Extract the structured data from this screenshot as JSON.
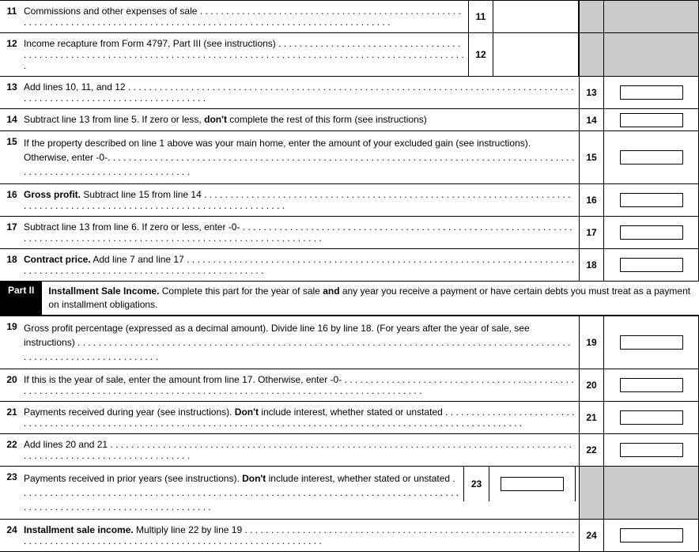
{
  "rows_a": [
    {
      "num": "11",
      "text": "Commissions and other expenses of sale",
      "mid_num": "11",
      "has_mid": true,
      "has_right_shade": true,
      "dots": true
    },
    {
      "num": "12",
      "text": "Income recapture from Form 4797, Part III (see instructions)",
      "mid_num": "12",
      "has_mid": true,
      "has_right_shade": true,
      "dots": true
    }
  ],
  "rows_b": [
    {
      "num": "13",
      "text": "Add lines 10, 11, and 12",
      "right_num": "13",
      "dots": true,
      "bold_prefix": ""
    },
    {
      "num": "14",
      "text": "Subtract line 13 from line 5. If zero or less, <b>don't</b> complete the rest of this form (see instructions)",
      "right_num": "14",
      "dots": false
    },
    {
      "num": "15",
      "text": "If the property described on line 1 above was your main home, enter the amount of your excluded gain (see instructions). Otherwise, enter -0-.",
      "right_num": "15",
      "dots": true,
      "multiline": true
    },
    {
      "num": "16",
      "text": "<b>Gross profit.</b> Subtract line 15 from line 14",
      "right_num": "16",
      "dots": true
    },
    {
      "num": "17",
      "text": "Subtract line 13 from line 6. If zero or less, enter -0-",
      "right_num": "17",
      "dots": true
    },
    {
      "num": "18",
      "text": "<b>Contract price.</b> Add line 7 and line 17",
      "right_num": "18",
      "dots": true
    }
  ],
  "part2": {
    "label": "Part II",
    "title": "Installment Sale Income.",
    "desc": "Complete this part for the year of sale <b>and</b> any year you receive a payment or have certain debts you must treat as a payment on installment obligations."
  },
  "rows_c": [
    {
      "num": "19",
      "text": "Gross profit percentage (expressed as a decimal amount). Divide line 16 by line 18. (For years after the year of sale, see instructions)",
      "right_num": "19",
      "dots": true,
      "multiline": true
    },
    {
      "num": "20",
      "text": "If this is the year of sale, enter the amount from line 17. Otherwise, enter -0-",
      "right_num": "20",
      "dots": true
    },
    {
      "num": "21",
      "text": "Payments received during year (see instructions). <b>Don't</b> include interest, whether stated or unstated",
      "right_num": "21",
      "dots": true
    },
    {
      "num": "22",
      "text": "Add lines 20 and 21",
      "right_num": "22",
      "dots": true
    }
  ],
  "row23": {
    "num": "23",
    "text": "Payments received in prior years (see instructions). <b>Don't</b> include interest, whether stated or unstated",
    "mid_num": "23"
  },
  "row24": {
    "num": "24",
    "text": "<b>Installment sale income.</b> Multiply line 22 by line 19",
    "right_num": "24"
  }
}
